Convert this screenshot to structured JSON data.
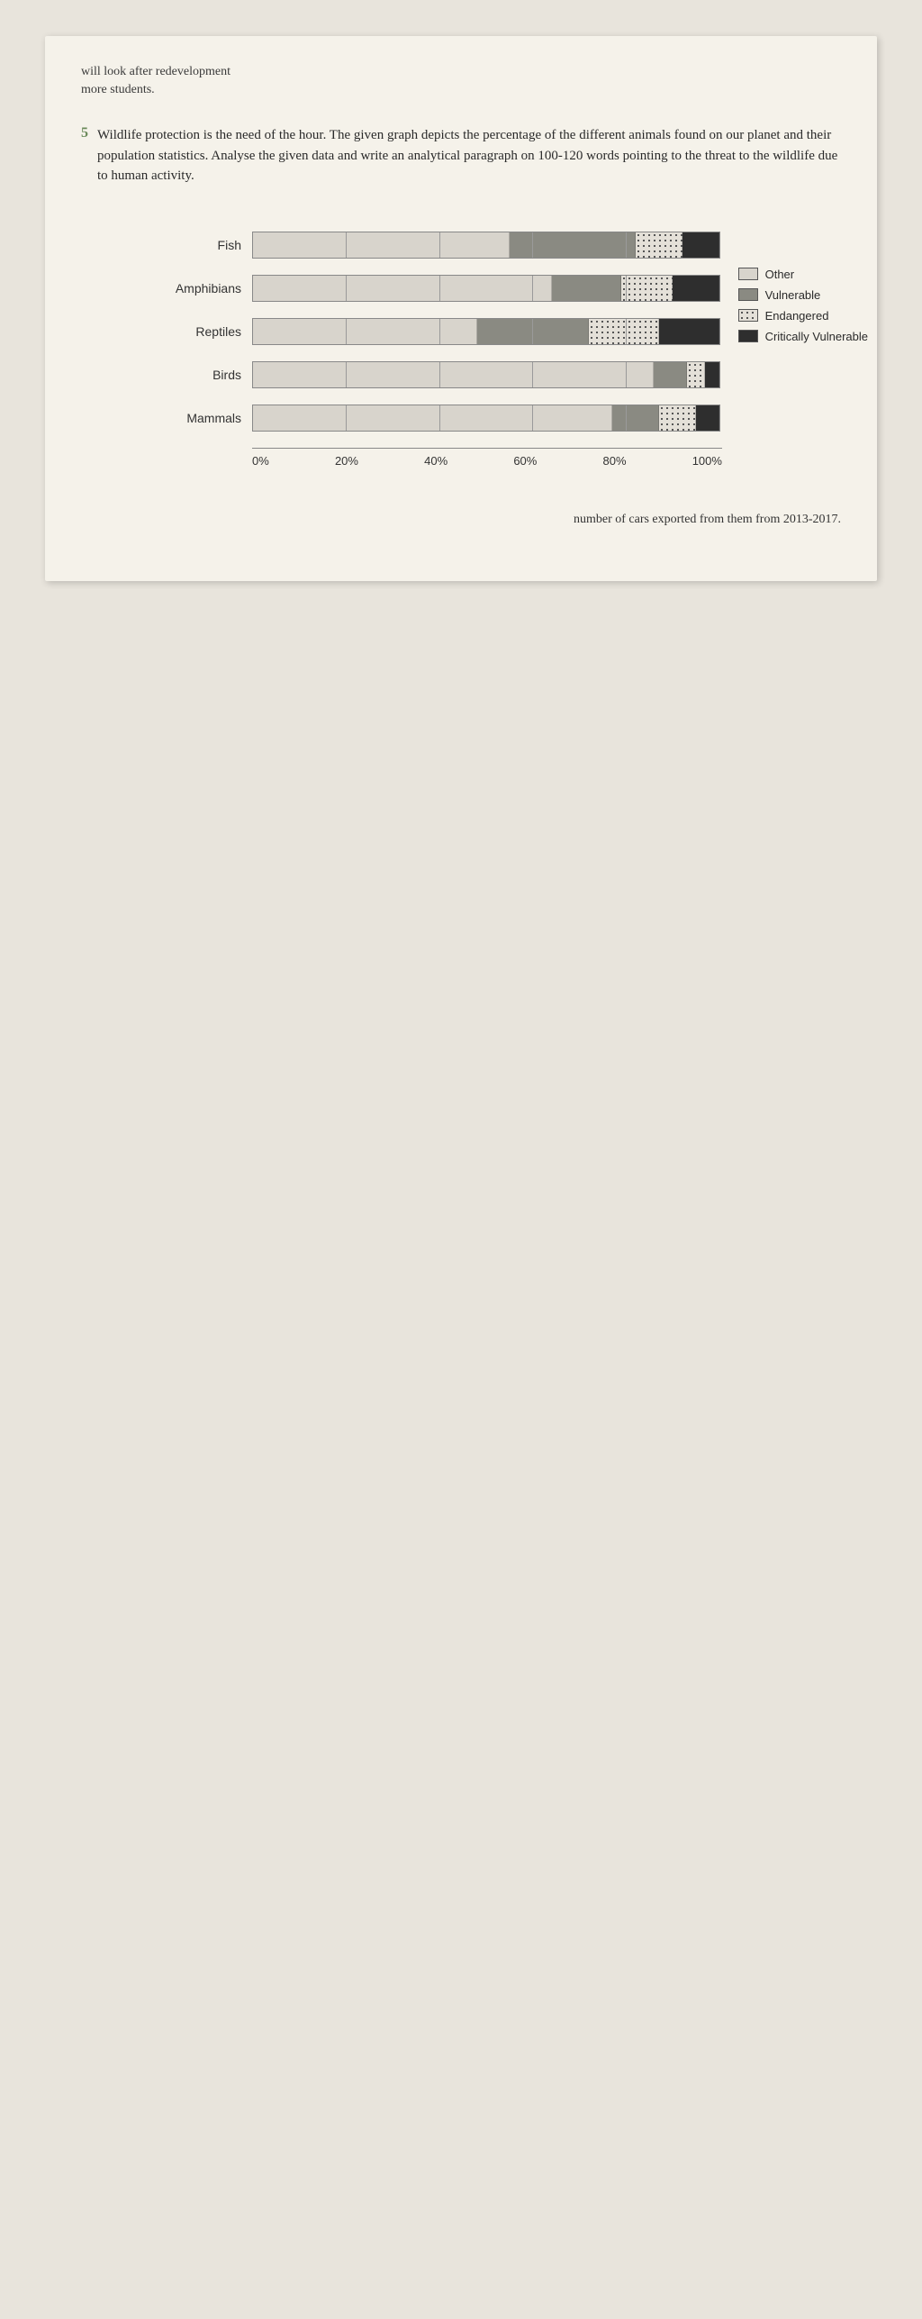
{
  "fragment": {
    "line1": "will look after redevelopment",
    "line2": "more students."
  },
  "question": {
    "number": "5",
    "text": "Wildlife protection is the need of the hour. The given graph depicts the percentage of the different animals found on our planet and their population statistics. Analyse the given data and write an analytical paragraph on 100-120 words pointing to the threat to the wildlife due to human activity."
  },
  "chart": {
    "type": "stacked-bar-horizontal",
    "background_color": "#f5f2ea",
    "grid_color": "#9a9a9a",
    "bar_border_color": "#888888",
    "label_fontsize": 14,
    "tick_fontsize": 13,
    "xlim": [
      0,
      100
    ],
    "xtick_step": 20,
    "xtick_labels": [
      "0%",
      "20%",
      "40%",
      "60%",
      "80%",
      "100%"
    ],
    "series": [
      {
        "key": "other",
        "label": "Other",
        "fill": "#d8d4cc",
        "pattern": "none"
      },
      {
        "key": "vulnerable",
        "label": "Vulnerable",
        "fill": "#8a8a82",
        "pattern": "none"
      },
      {
        "key": "endangered",
        "label": "Endangered",
        "fill": "#e4e0d8",
        "pattern": "dots"
      },
      {
        "key": "critically_vulnerable",
        "label": "Critically Vulnerable",
        "fill": "#2e2e2e",
        "pattern": "none"
      }
    ],
    "categories": [
      {
        "name": "Fish",
        "other": 55,
        "vulnerable": 27,
        "endangered": 10,
        "critically_vulnerable": 8
      },
      {
        "name": "Amphibians",
        "other": 64,
        "vulnerable": 15,
        "endangered": 11,
        "critically_vulnerable": 10
      },
      {
        "name": "Reptiles",
        "other": 48,
        "vulnerable": 24,
        "endangered": 15,
        "critically_vulnerable": 13
      },
      {
        "name": "Birds",
        "other": 86,
        "vulnerable": 7,
        "endangered": 4,
        "critically_vulnerable": 3
      },
      {
        "name": "Mammals",
        "other": 77,
        "vulnerable": 10,
        "endangered": 8,
        "critically_vulnerable": 5
      }
    ]
  },
  "footer_note": "number of cars exported from them from 2013-2017."
}
